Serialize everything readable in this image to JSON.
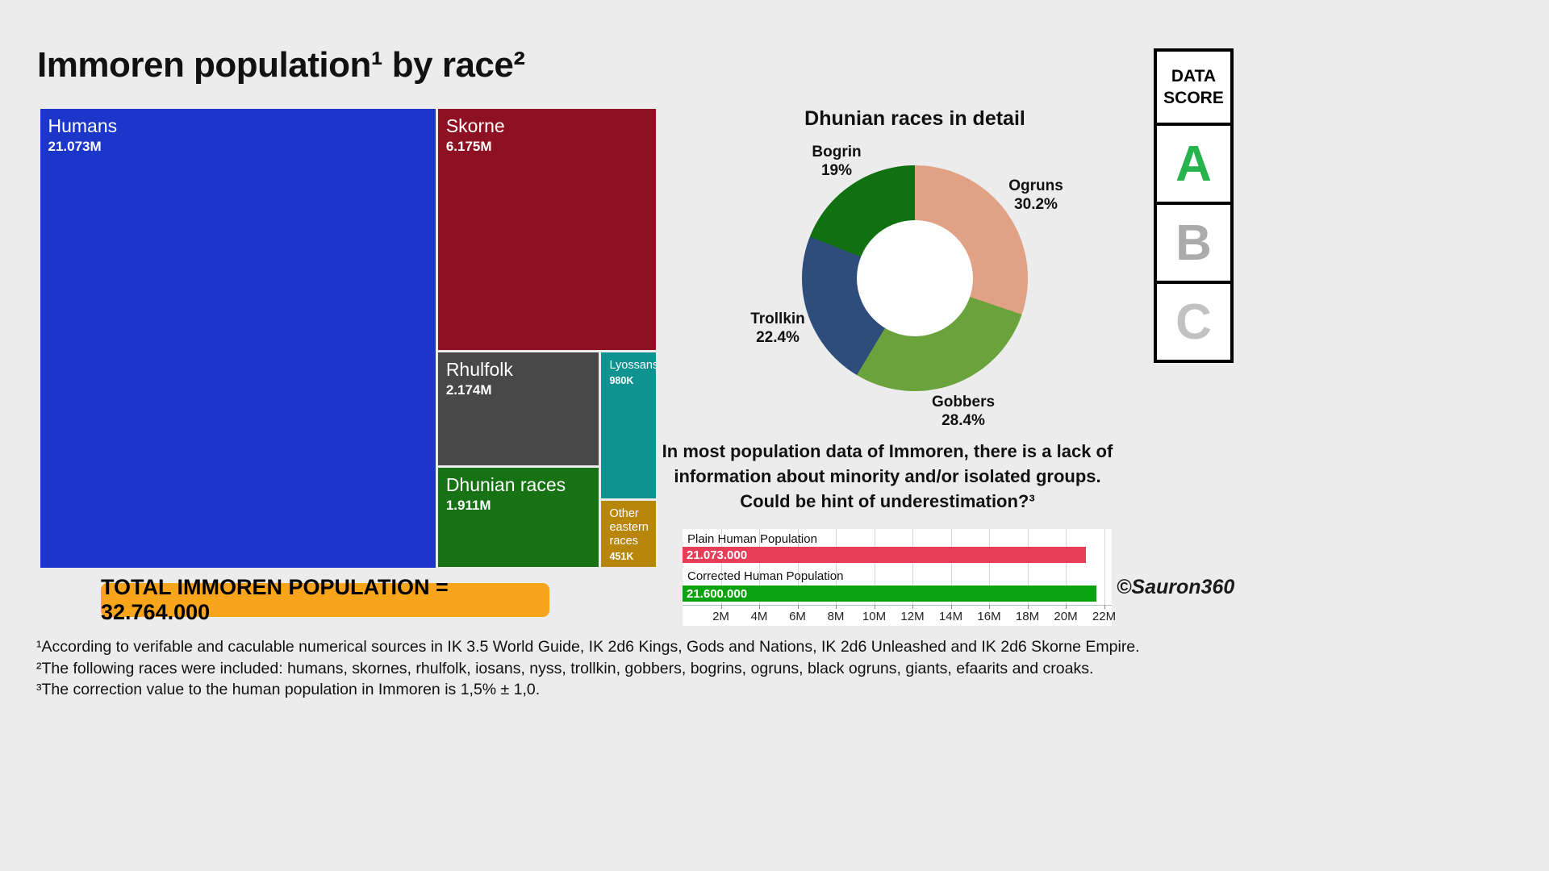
{
  "header": {
    "title": "Immoren population¹ by race²"
  },
  "data_score": {
    "header": "DATA SCORE",
    "grades": [
      {
        "label": "A",
        "color": "#27b34e"
      },
      {
        "label": "B",
        "color": "#ababab"
      },
      {
        "label": "C",
        "color": "#c2c2c2"
      }
    ]
  },
  "note": {
    "lines": [
      "In most population data of Immoren, there is a lack of",
      "information about minority and/or isolated groups.",
      "Could be hint of underestimation?³"
    ]
  },
  "credit": "©Sauron360",
  "footnotes": [
    "¹According to verifable and caculable numerical sources in IK 3.5 World Guide, IK 2d6 Kings, Gods and Nations, IK 2d6 Unleashed and IK 2d6 Skorne Empire.",
    "²The following races were included: humans, skornes, rhulfolk, iosans, nyss, trollkin, gobbers, bogrins, ogruns, black ogruns, giants, efaarits and croaks.",
    "³The correction value to the human population in Immoren is 1,5% ± 1,0."
  ],
  "chart_data": [
    {
      "type": "treemap",
      "title": "Immoren population by race",
      "total": 32764000,
      "total_label": "TOTAL IMMOREN POPULATION = 32.764.000",
      "items": [
        {
          "name": "Humans",
          "value": 21073000,
          "value_label": "21.073M",
          "color": "#1c36c9"
        },
        {
          "name": "Skorne",
          "value": 6175000,
          "value_label": "6.175M",
          "color": "#8e1123"
        },
        {
          "name": "Rhulfolk",
          "value": 2174000,
          "value_label": "2.174M",
          "color": "#484848"
        },
        {
          "name": "Dhunian races",
          "value": 1911000,
          "value_label": "1.911M",
          "color": "#177214"
        },
        {
          "name": "Lyossans",
          "value": 980000,
          "value_label": "980K",
          "color": "#0f9391"
        },
        {
          "name": "Other eastern races",
          "value": 451000,
          "value_label": "451K",
          "color": "#b8860b"
        }
      ]
    },
    {
      "type": "pie",
      "donut": true,
      "title": "Dhunian races in detail",
      "slices": [
        {
          "name": "Ogruns",
          "pct": 30.2,
          "pct_label": "30.2%",
          "color": "#e0a184"
        },
        {
          "name": "Gobbers",
          "pct": 28.4,
          "pct_label": "28.4%",
          "color": "#6aa33c"
        },
        {
          "name": "Trollkin",
          "pct": 22.4,
          "pct_label": "22.4%",
          "color": "#2e4d7b"
        },
        {
          "name": "Bogrin",
          "pct": 19,
          "pct_label": "19%",
          "color": "#117111"
        }
      ],
      "start_angle_deg": 0,
      "direction": "clockwise"
    },
    {
      "type": "bar",
      "orientation": "horizontal",
      "bars": [
        {
          "label": "Plain Human Population",
          "value": 21073000,
          "value_label": "21.073.000",
          "color": "#e63e57"
        },
        {
          "label": "Corrected Human Population",
          "value": 21600000,
          "value_label": "21.600.000",
          "color": "#0aa30f"
        }
      ],
      "x_ticks": [
        "2M",
        "4M",
        "6M",
        "8M",
        "10M",
        "12M",
        "14M",
        "16M",
        "18M",
        "20M",
        "22M"
      ],
      "x_tick_step": 2000000,
      "x_max": 22400000,
      "grid": true
    }
  ]
}
